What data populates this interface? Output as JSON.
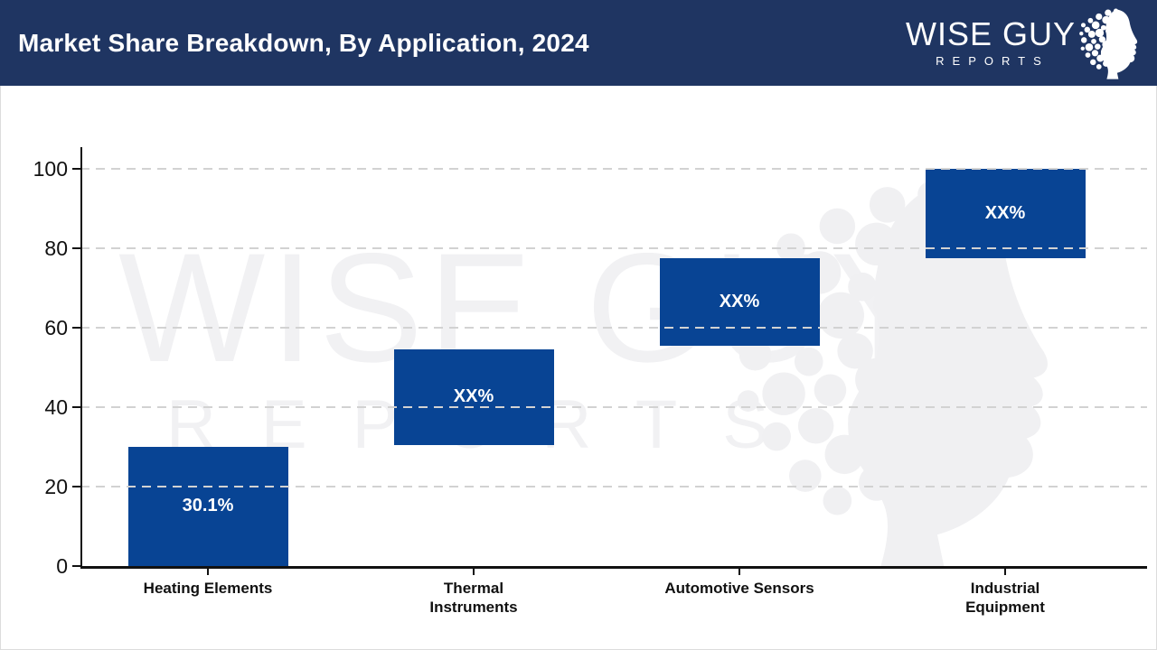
{
  "header": {
    "title": "Market Share Breakdown, By Application, 2024",
    "brand": {
      "name": "WISE GUY",
      "sub": "REPORTS"
    }
  },
  "watermark": {
    "line1": "WISE GUY",
    "line2": "REPORTS"
  },
  "chart_data": {
    "type": "bar",
    "subtype": "floating-waterfall",
    "title": "Market Share Breakdown, By Application, 2024",
    "categories": [
      "Heating Elements",
      "Thermal\nInstruments",
      "Automotive Sensors",
      "Industrial\nEquipment"
    ],
    "segments": [
      {
        "category": "Heating Elements",
        "start": 0,
        "end": 30.1,
        "label": "30.1%"
      },
      {
        "category": "Thermal Instruments",
        "start": 30.5,
        "end": 54.5,
        "label": "XX%"
      },
      {
        "category": "Automotive Sensors",
        "start": 55.5,
        "end": 77.5,
        "label": "XX%"
      },
      {
        "category": "Industrial Equipment",
        "start": 77.5,
        "end": 100,
        "label": "XX%"
      }
    ],
    "yticks": [
      0,
      20,
      40,
      60,
      80,
      100
    ],
    "ylim": [
      0,
      105
    ],
    "xlabel": "",
    "ylabel": "",
    "legend": null,
    "grid": "horizontal-dashed",
    "colors": {
      "bar": "#084494",
      "grid": "#d2d2d2",
      "axis": "#111111",
      "value_label": "#ffffff"
    }
  },
  "theme": {
    "header_bg": "#1f3562",
    "body_bg": "#ffffff",
    "watermark_color": "#f1f1f3",
    "border": "#dcdcdc"
  }
}
